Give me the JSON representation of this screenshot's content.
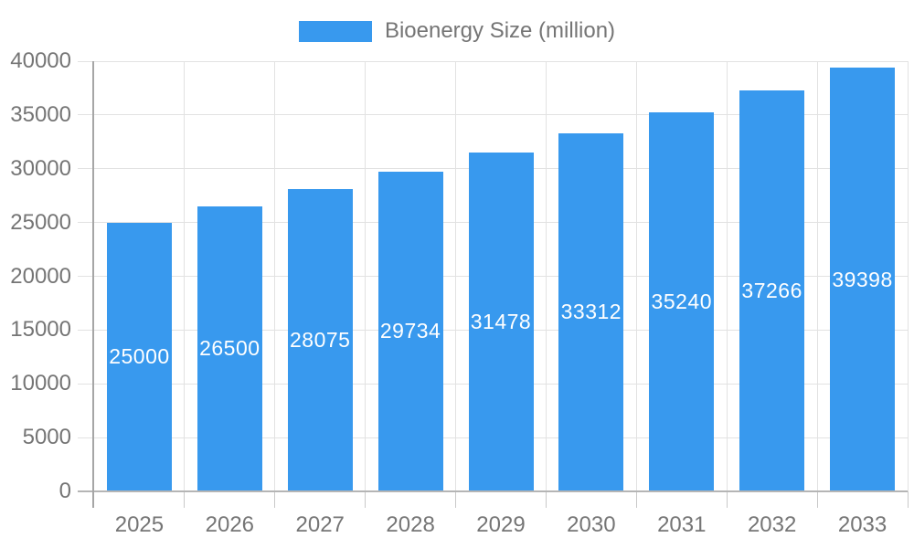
{
  "chart_data": {
    "type": "bar",
    "legend": "Bioenergy Size (million)",
    "legend_position": "top-center",
    "categories": [
      "2025",
      "2026",
      "2027",
      "2028",
      "2029",
      "2030",
      "2031",
      "2032",
      "2033"
    ],
    "values": [
      25000,
      26500,
      28075,
      29734,
      31478,
      33312,
      35240,
      37266,
      39398
    ],
    "ylim": [
      0,
      40000
    ],
    "ytick_step": 5000,
    "yticks": [
      0,
      5000,
      10000,
      15000,
      20000,
      25000,
      30000,
      35000,
      40000
    ],
    "grid": true,
    "colors": {
      "bar": "#3899EE",
      "bar_value_label": "#ffffff",
      "axis_text": "#757575",
      "gridline": "#e2e2e2",
      "x_axis_line": "#b5b5b5",
      "y_axis_line": "#a6a6a6",
      "tick": "#c9c9c9",
      "background": "#ffffff"
    }
  }
}
